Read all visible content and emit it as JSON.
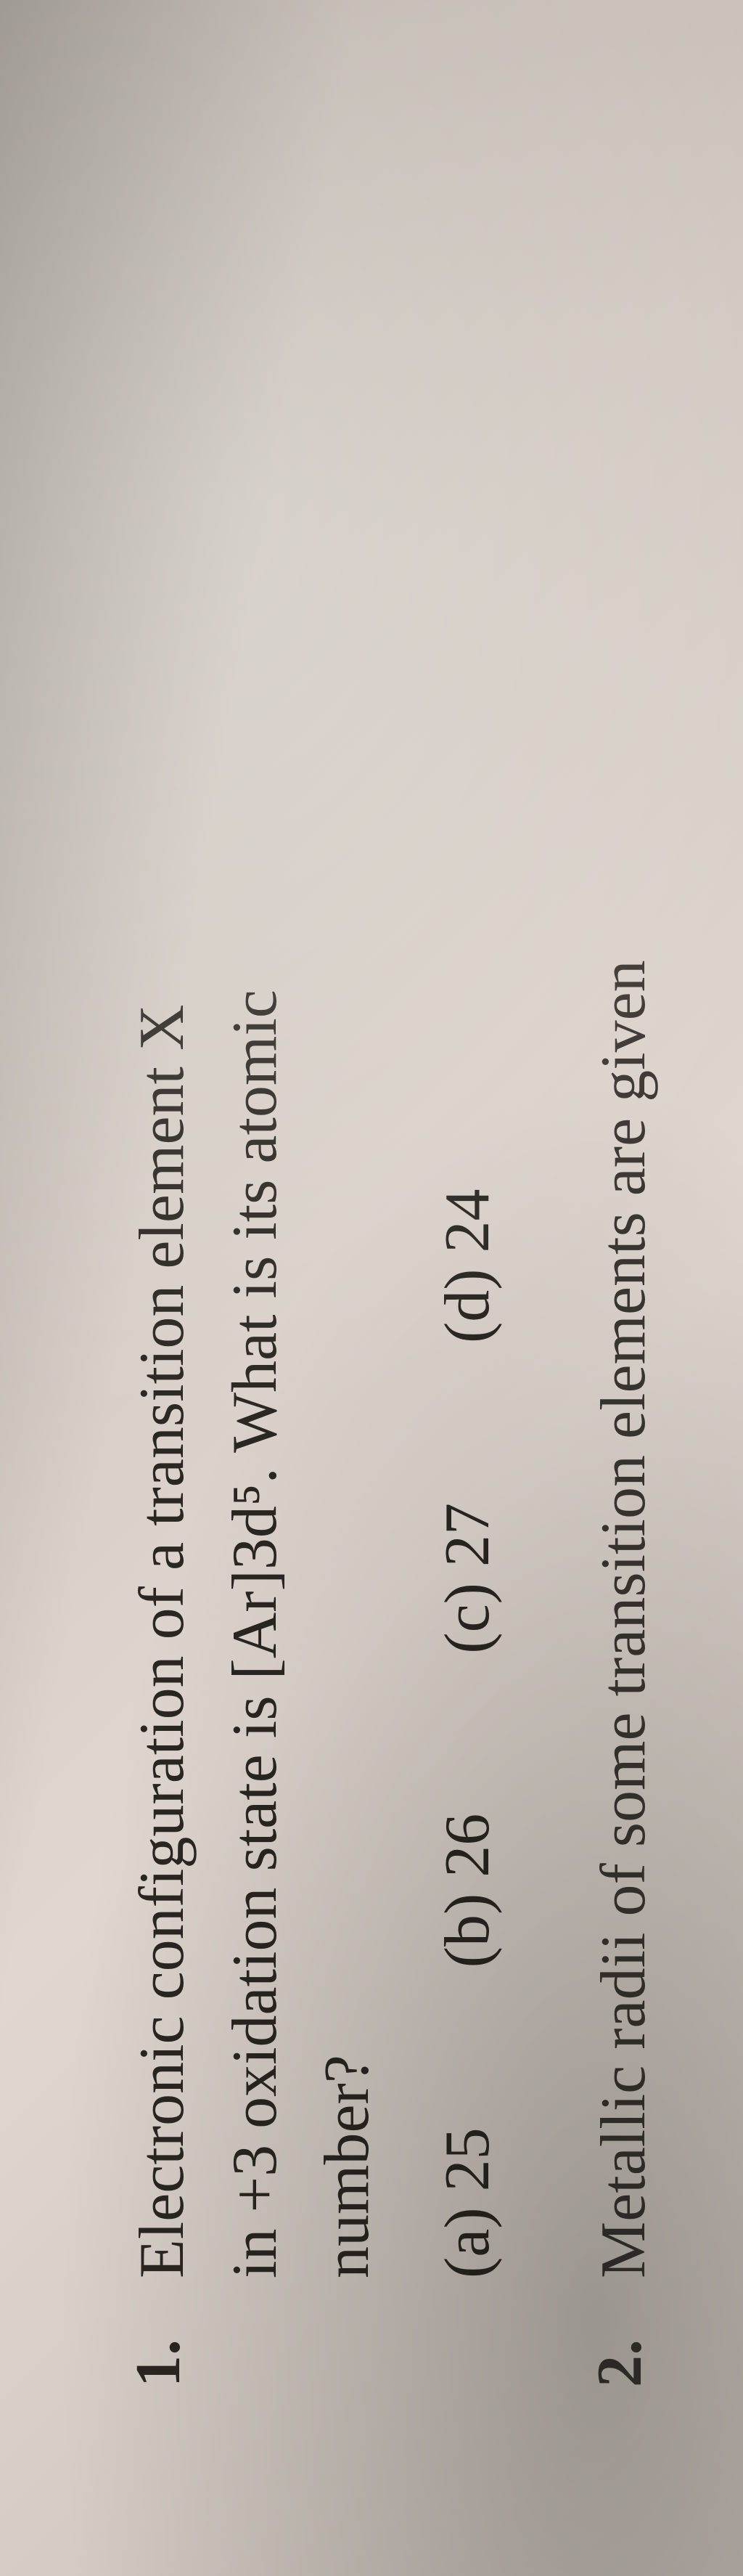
{
  "text_color": "#2a2622",
  "background_gradient": [
    "#b8b0a8",
    "#d0c8c0",
    "#e0d8d0",
    "#c8c0b8"
  ],
  "font_family": "Georgia, 'Times New Roman', serif",
  "rotation_deg": -90,
  "questions": [
    {
      "number": "1.",
      "lines": [
        "Electronic configuration of a transition element X",
        "in +3 oxidation state is [Ar]3d⁵. What is its atomic",
        "number?"
      ],
      "text_plain": "Electronic configuration of a transition element X in +3 oxidation state is [Ar]3d^5. What is its atomic number?",
      "options": [
        {
          "label": "(a)",
          "value": "25"
        },
        {
          "label": "(b)",
          "value": "26"
        },
        {
          "label": "(c)",
          "value": "27"
        },
        {
          "label": "(d)",
          "value": "24"
        }
      ],
      "font_size_pt": 66,
      "number_font_weight": 700
    },
    {
      "number": "2.",
      "lines": [
        "Metallic radii of some transition elements are given"
      ],
      "text_plain": "Metallic radii of some transition elements are given",
      "options": [],
      "truncated": true,
      "font_size_pt": 66,
      "number_font_weight": 700
    }
  ]
}
